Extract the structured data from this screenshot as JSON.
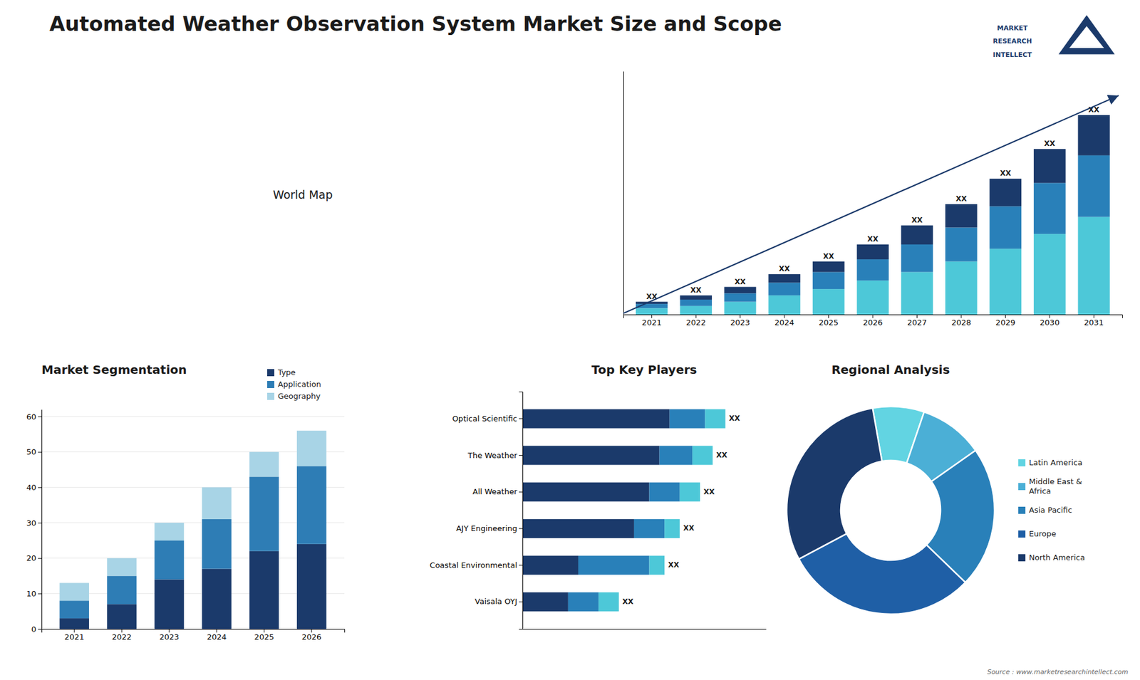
{
  "title": "Automated Weather Observation System Market Size and Scope",
  "annotations": [
    "World Map",
    "MARKET",
    "RESEARCH",
    "INTELLECT",
    "Source : www.marketresearchintellect.com"
  ],
  "chart_data": [
    {
      "type": "bar",
      "categories": [
        "2021",
        "2022",
        "2023",
        "2024",
        "2025",
        "2026",
        "2027",
        "2028",
        "2029",
        "2030",
        "2031"
      ],
      "series": [
        {
          "color": "#4dc8d8",
          "values": [
            3,
            4,
            6,
            9,
            12,
            16,
            20,
            25,
            31,
            38,
            46
          ]
        },
        {
          "color": "#2980b9",
          "values": [
            2,
            3,
            4,
            6,
            8,
            10,
            13,
            16,
            20,
            24,
            29
          ]
        },
        {
          "color": "#1b3a6b",
          "values": [
            1,
            2,
            3,
            4,
            5,
            7,
            9,
            11,
            13,
            16,
            19
          ]
        }
      ],
      "stacked": true,
      "ylim": [
        0,
        114.68
      ],
      "tick_labels": "x",
      "annotations": [
        "XX",
        "XX",
        "XX",
        "XX",
        "XX",
        "XX",
        "XX",
        "XX",
        "XX",
        "XX",
        "XX"
      ]
    },
    {
      "type": "bar",
      "title": "Market Segmentation",
      "categories": [
        "2021",
        "2022",
        "2023",
        "2024",
        "2025",
        "2026"
      ],
      "series": [
        {
          "name": "Type",
          "color": "#1b3a6b",
          "values": [
            3,
            7,
            14,
            17,
            22,
            24
          ]
        },
        {
          "name": "Application",
          "color": "#2e7db5",
          "values": [
            5,
            8,
            11,
            14,
            21,
            22
          ]
        },
        {
          "name": "Geography",
          "color": "#a8d4e6",
          "values": [
            5,
            5,
            5,
            9,
            7,
            10
          ]
        }
      ],
      "stacked": true,
      "ylim": [
        0,
        62
      ],
      "yticks": [
        0,
        10,
        20,
        30,
        40,
        50,
        60
      ],
      "grid": true,
      "legend": "upper right"
    },
    {
      "type": "bar",
      "title": "Top Key Players",
      "orientation": "horizontal",
      "categories": [
        "Optical Scientific",
        "The Weather",
        "All Weather",
        "AJY Engineering",
        "Coastal Environmental",
        "Vaisala OYJ"
      ],
      "series": [
        {
          "color": "#1b3a6b",
          "values": [
            58,
            54,
            50,
            44,
            22,
            18
          ]
        },
        {
          "color": "#2980b9",
          "values": [
            14,
            13,
            12,
            12,
            28,
            12
          ]
        },
        {
          "color": "#4dc8d8",
          "values": [
            8,
            8,
            8,
            6,
            6,
            8
          ]
        }
      ],
      "stacked": true,
      "xlim": [
        0,
        96
      ],
      "tick_labels": "y",
      "annotations": [
        "XX",
        "XX",
        "XX",
        "XX",
        "XX",
        "XX"
      ]
    },
    {
      "type": "pie",
      "title": "Regional Analysis",
      "categories": [
        "Latin America",
        "Middle East &\nAfrica",
        "Asia Pacific",
        "Europe",
        "North America"
      ],
      "values": [
        8,
        10,
        22,
        30,
        30
      ],
      "colors": [
        "#62d4e2",
        "#4bafd6",
        "#2980b9",
        "#1f5fa6",
        "#1b3a6b"
      ],
      "legend": "right"
    }
  ]
}
